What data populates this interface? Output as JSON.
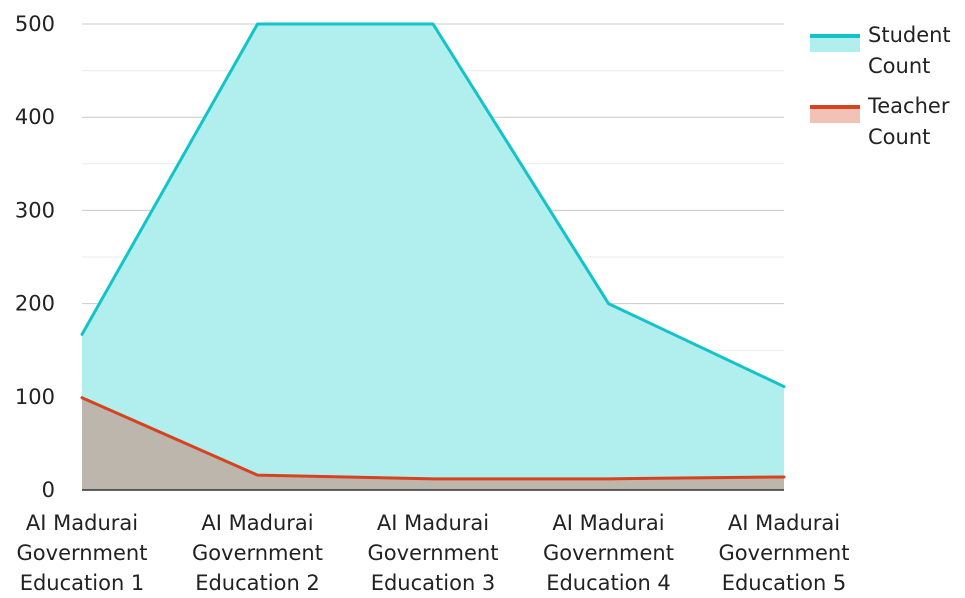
{
  "chart_data": {
    "type": "area",
    "title": "",
    "xlabel": "",
    "ylabel": "",
    "categories": [
      [
        "AI Madurai",
        "Government",
        "Education 1"
      ],
      [
        "AI Madurai",
        "Government",
        "Education 2"
      ],
      [
        "AI Madurai",
        "Government",
        "Education 3"
      ],
      [
        "AI Madurai",
        "Government",
        "Education 4"
      ],
      [
        "AI Madurai",
        "Government",
        "Education 5"
      ]
    ],
    "ylim": [
      0,
      500
    ],
    "yticks": [
      "0",
      "100",
      "200",
      "300",
      "400",
      "500"
    ],
    "grid": true,
    "legend_position": "top-right",
    "series": [
      {
        "name": "Student Count",
        "legend_lines": [
          "Student",
          "Count"
        ],
        "values": [
          167,
          500,
          500,
          200,
          111
        ],
        "line_color": "#12c4c8",
        "fill_color": "#b1eeee"
      },
      {
        "name": "Teacher Count",
        "legend_lines": [
          "Teacher",
          "Count"
        ],
        "values": [
          99,
          16,
          12,
          12,
          14
        ],
        "line_color": "#d7431f",
        "fill_color": "#bdb6ac",
        "legend_fill_color": "#f3c2b6"
      }
    ]
  }
}
